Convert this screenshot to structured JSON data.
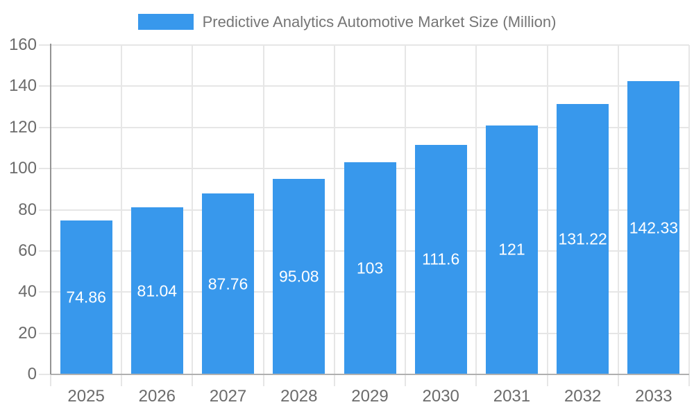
{
  "chart_data": {
    "type": "bar",
    "title": "Predictive Analytics Automotive Market Size (Million)",
    "categories": [
      "2025",
      "2026",
      "2027",
      "2028",
      "2029",
      "2030",
      "2031",
      "2032",
      "2033"
    ],
    "values": [
      74.86,
      81.04,
      87.76,
      95.08,
      103,
      111.6,
      121,
      131.22,
      142.33
    ],
    "bar_labels": [
      "74.86",
      "81.04",
      "87.76",
      "95.08",
      "103",
      "111.6",
      "121",
      "131.22",
      "142.33"
    ],
    "xlabel": "",
    "ylabel": "",
    "ylim": [
      0,
      160
    ],
    "ytick_step": 20,
    "ytick_labels": [
      "0",
      "20",
      "40",
      "60",
      "80",
      "100",
      "120",
      "140",
      "160"
    ],
    "grid": true,
    "legend_position": "top",
    "value_label_position": "inside-center",
    "colors": {
      "bar": "#3898EC",
      "grid_line": "#E6E6E6",
      "baseline": "#B0B0B0",
      "axis_line": "#949494",
      "axis_text": "#6B6B6B",
      "title_text": "#757575",
      "bar_label_text": "#FFFFFF",
      "background": "#FFFFFF"
    }
  }
}
